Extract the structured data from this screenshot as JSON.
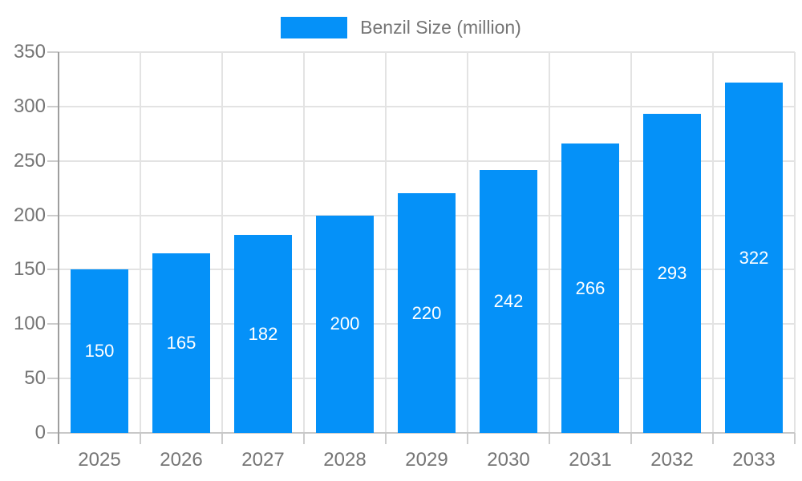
{
  "chart_data": {
    "type": "bar",
    "title": "Benzil Size (million)",
    "legend": [
      "Benzil Size (million)"
    ],
    "legend_position": "top",
    "categories": [
      "2025",
      "2026",
      "2027",
      "2028",
      "2029",
      "2030",
      "2031",
      "2032",
      "2033"
    ],
    "values": [
      150,
      165,
      182,
      200,
      220,
      242,
      266,
      293,
      322
    ],
    "xlabel": "",
    "ylabel": "",
    "ylim": [
      0,
      350
    ],
    "ytick_step": 50,
    "yticks": [
      0,
      50,
      100,
      150,
      200,
      250,
      300,
      350
    ],
    "grid": "on",
    "bar_labels_inside": true,
    "colors": {
      "bar": "#0591F8",
      "bar_label_text": "#ffffff",
      "axis_text": "#757575",
      "gridline": "#e3e3e3",
      "y_axis_line": "#9e9e9e",
      "x_axis_line": "#c8c8c8",
      "tick": "#cccccc",
      "background": "#ffffff"
    }
  }
}
